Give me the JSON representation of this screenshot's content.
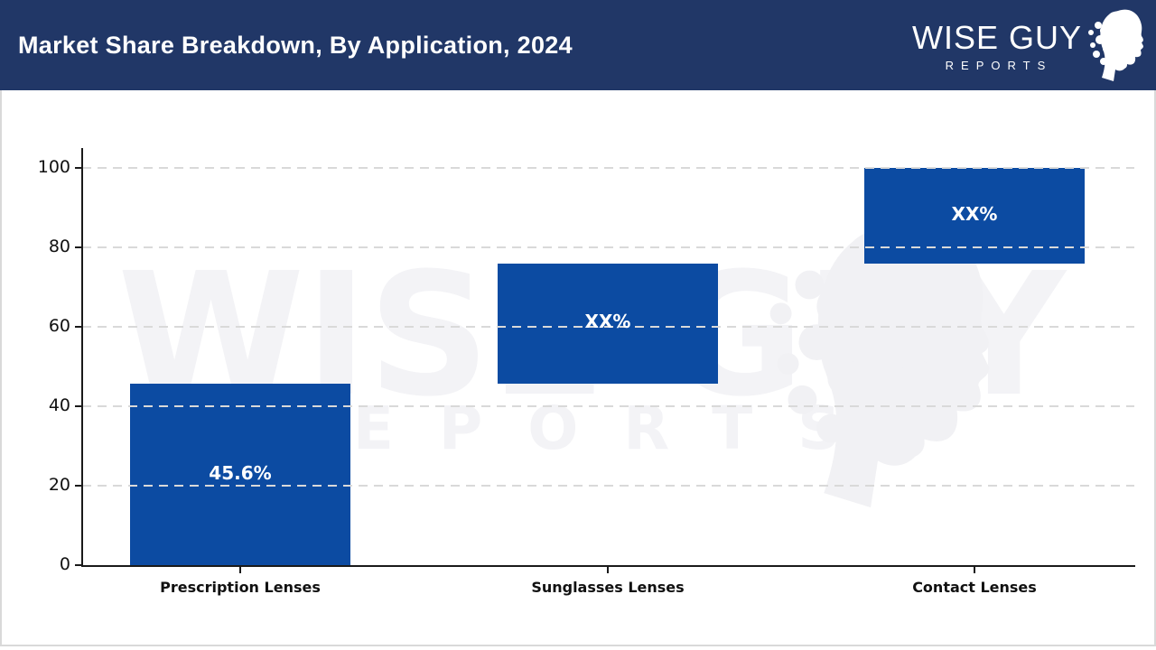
{
  "theme": {
    "header_bg": "#213767",
    "bar_color": "#0c4ba2",
    "grid_color": "#d9d9d9",
    "axis_color": "#1a1a1a",
    "watermark_color": "#f3f3f6"
  },
  "header": {
    "title": "Market Share Breakdown, By Application, 2024",
    "logo": {
      "name": "WISE GUY",
      "sub": "REPORTS"
    }
  },
  "watermark": {
    "line1": "WISE GUY",
    "line2": "REPORTS"
  },
  "chart_data": {
    "type": "bar",
    "subtype": "floating-segment (waterfall-style market share breakdown)",
    "title": "Market Share Breakdown, By Application, 2024",
    "categories": [
      "Prescription Lenses",
      "Sunglasses Lenses",
      "Contact Lenses"
    ],
    "bars": [
      {
        "category": "Prescription Lenses",
        "label": "45.6%",
        "start": 0,
        "end": 45.6
      },
      {
        "category": "Sunglasses Lenses",
        "label": "XX%",
        "start": 45.6,
        "end": 76
      },
      {
        "category": "Contact Lenses",
        "label": "XX%",
        "start": 76,
        "end": 100
      }
    ],
    "xlabel": "",
    "ylabel": "",
    "yticks": [
      0,
      20,
      40,
      60,
      80,
      100
    ],
    "ylim": [
      0,
      105
    ],
    "grid": "horizontal dashed gridlines drawn over bars",
    "legend": "none",
    "bar_color": "#0c4ba2"
  }
}
